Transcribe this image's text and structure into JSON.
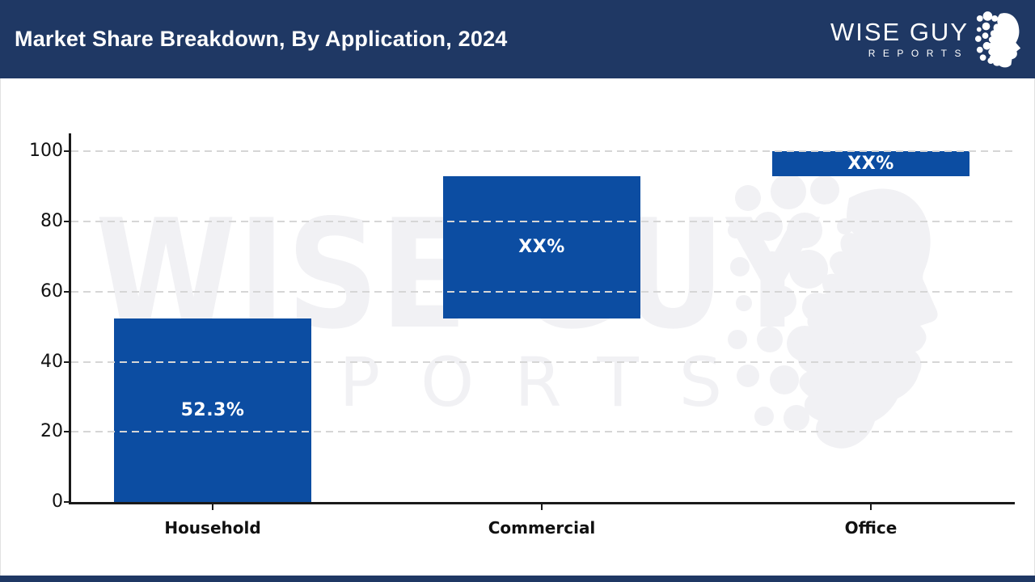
{
  "header": {
    "title": "Market Share Breakdown, By Application, 2024",
    "logo": {
      "line1": "WISE GUY",
      "line2": "REPORTS"
    }
  },
  "watermark": {
    "line1": "WISE GUY",
    "line2": "REPORTS"
  },
  "chart_data": {
    "type": "bar",
    "subtype": "stacked-waterfall",
    "title": "Market Share Breakdown, By Application, 2024",
    "categories": [
      "Household",
      "Commercial",
      "Office"
    ],
    "segments": [
      {
        "category": "Household",
        "label": "52.3%",
        "start": 0,
        "end": 52.3
      },
      {
        "category": "Commercial",
        "label": "XX%",
        "start": 52.3,
        "end": 93
      },
      {
        "category": "Office",
        "label": "XX%",
        "start": 93,
        "end": 100
      }
    ],
    "xlabel": "",
    "ylabel": "",
    "yticks": [
      0,
      20,
      40,
      60,
      80,
      100
    ],
    "ylim": [
      0,
      105
    ],
    "grid": "dashed-horizontal",
    "legend": "none",
    "bar_color": "#0C4DA2",
    "bar_label_color": "#ffffff",
    "grid_color": "#d6d6d6",
    "axis_color": "#1a1a1a"
  },
  "colors": {
    "header_bg": "#1F3864",
    "footer_bg": "#1F3864",
    "watermark": "#f1f1f4",
    "background": "#ffffff"
  }
}
